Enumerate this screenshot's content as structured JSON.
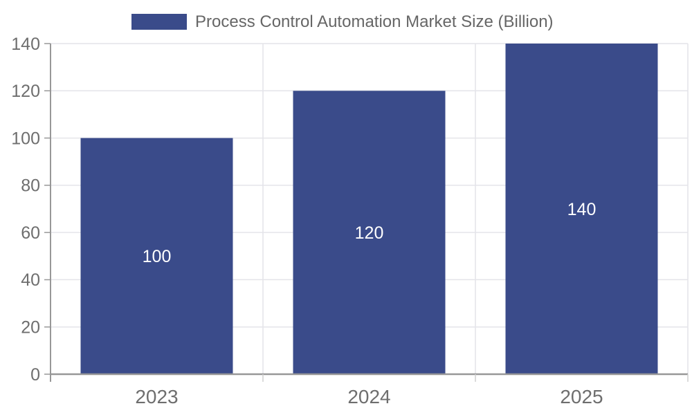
{
  "chart_data": {
    "type": "bar",
    "title": "Process Control Automation Market Size (Billion)",
    "categories": [
      "2023",
      "2024",
      "2025"
    ],
    "series": [
      {
        "name": "Process Control Automation Market Size (Billion)",
        "values": [
          100,
          120,
          140
        ]
      }
    ],
    "xlabel": "",
    "ylabel": "",
    "ylim": [
      0,
      140
    ],
    "yticks": [
      0,
      20,
      40,
      60,
      80,
      100,
      120,
      140
    ],
    "grid": true,
    "legend_position": "top-center",
    "value_labels_inside_bars": true,
    "colors": {
      "bar": "#3A4B8A",
      "value_label": "#FFFFFF",
      "axis_label": "#6E6E6E",
      "legend_label": "#666666",
      "axis_line": "#979797",
      "grid_line": "#E4E4E9",
      "tick_line": "#CFCFCF",
      "background": "#FFFFFF"
    }
  }
}
